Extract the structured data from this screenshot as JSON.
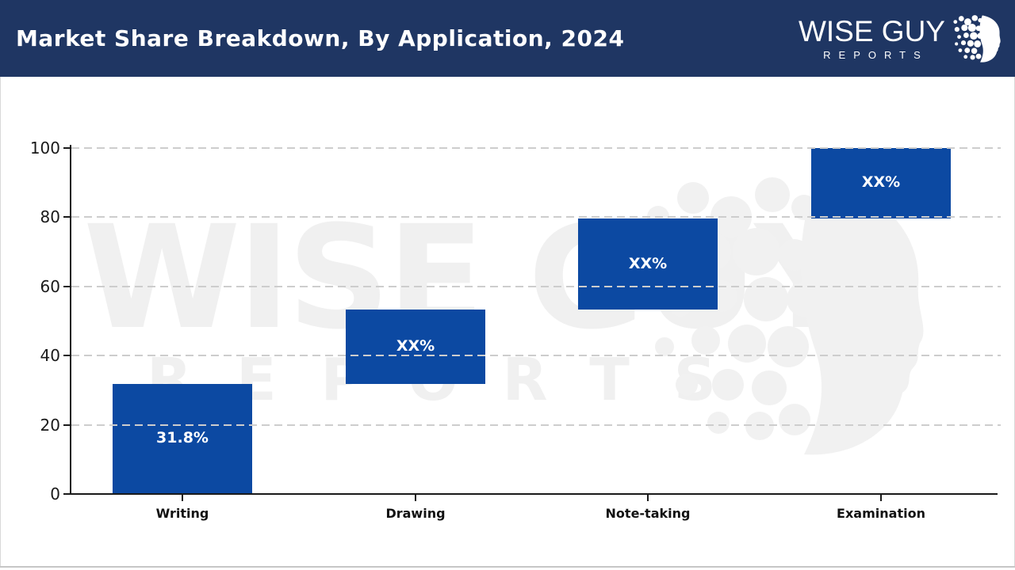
{
  "header": {
    "title": "Market Share Breakdown, By Application, 2024",
    "bg_color": "#1f3663",
    "logo": {
      "line1": "WISE GUY",
      "line2": "REPORTS"
    }
  },
  "watermark": {
    "line1": "WISE GUY",
    "line2": "REPORTS"
  },
  "chart_data": {
    "type": "waterfall",
    "title": "Market Share Breakdown, By Application, 2024",
    "categories": [
      "Writing",
      "Drawing",
      "Note-taking",
      "Examination"
    ],
    "segments": [
      {
        "category": "Writing",
        "start": 0,
        "end": 31.8,
        "label": "31.8%"
      },
      {
        "category": "Drawing",
        "start": 31.8,
        "end": 53.2,
        "label": "XX%"
      },
      {
        "category": "Note-taking",
        "start": 53.2,
        "end": 79.5,
        "label": "XX%"
      },
      {
        "category": "Examination",
        "start": 79.5,
        "end": 100,
        "label": "XX%"
      }
    ],
    "ylim": [
      0,
      100
    ],
    "yticks": [
      0,
      20,
      40,
      60,
      80,
      100
    ],
    "grid": "horizontal-dashed",
    "legend": "none",
    "bar_color": "#0c49a2",
    "bar_label_color": "#ffffff",
    "axis_color": "#1a1a1a"
  }
}
